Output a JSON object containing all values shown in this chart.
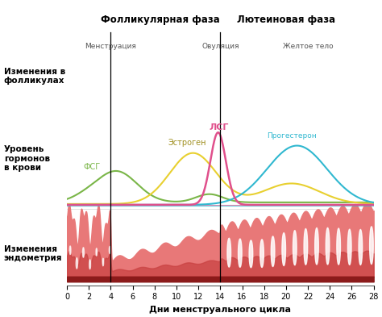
{
  "title_follicular": "Фолликулярная фаза",
  "title_luteal": "Лютеиновая фаза",
  "xlabel": "Дни менструального цикла",
  "label_follicles": "Изменения в\nфолликулах",
  "label_hormones": "Уровень\nгормонов\nв крови",
  "label_endometrium": "Изменения\nэндометрия",
  "label_menstruation": "Менструация",
  "label_ovulation": "Овуляция",
  "label_corpus_luteum": "Желтое тело",
  "label_fsg": "ФСГ",
  "label_estrogen": "Эстроген",
  "label_lsg": "ЛСГ",
  "label_progesterone": "Прогестерон",
  "x_ticks": [
    0,
    2,
    4,
    6,
    8,
    10,
    12,
    14,
    16,
    18,
    20,
    22,
    24,
    26,
    28
  ],
  "vertical_line1": 4,
  "vertical_line2": 14,
  "bg_color": "#ffffff",
  "fsg_color": "#7ab648",
  "estrogen_color": "#e8d030",
  "lsg_color": "#e0508c",
  "progesterone_color": "#30b8d0",
  "endometrium_fill": "#e87878",
  "endometrium_dark": "#8b1a1a",
  "endometrium_mid": "#c84040"
}
